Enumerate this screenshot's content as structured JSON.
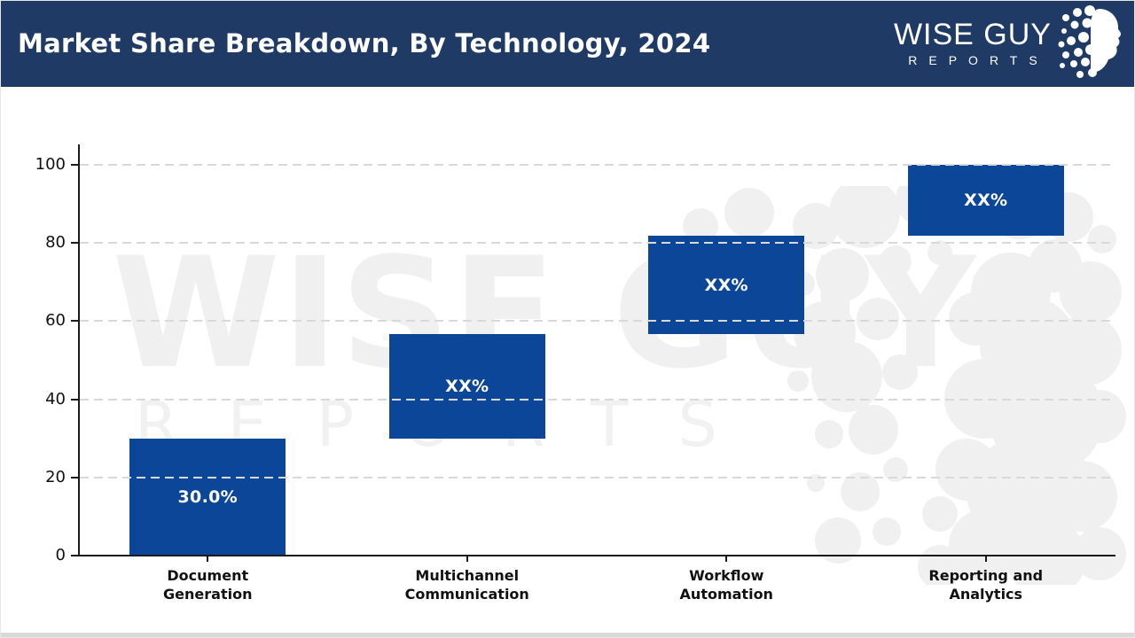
{
  "header": {
    "title": "Market Share Breakdown, By Technology, 2024",
    "logo": {
      "line1": "WISE GUY",
      "line2": "REPORTS"
    }
  },
  "watermark": {
    "line1": "WISE GUY",
    "line2": "REPORTS"
  },
  "chart_data": {
    "type": "bar",
    "subtype": "waterfall",
    "title": "Market Share Breakdown, By Technology, 2024",
    "xlabel": "",
    "ylabel": "",
    "ylim": [
      0,
      100
    ],
    "yticks": [
      0,
      20,
      40,
      60,
      80,
      100
    ],
    "grid": "horizontal-dashed",
    "legend_position": "none",
    "bar_color": "#0c4699",
    "value_label_color": "#ffffff",
    "categories": [
      "Document\nGeneration",
      "Multichannel\nCommunication",
      "Workflow\nAutomation",
      "Reporting and\nAnalytics"
    ],
    "bars": [
      {
        "category": "Document Generation",
        "start": 0,
        "end": 30,
        "label": "30.0%"
      },
      {
        "category": "Multichannel Communication",
        "start": 30,
        "end": 56.6,
        "label": "XX%"
      },
      {
        "category": "Workflow Automation",
        "start": 56.6,
        "end": 81.9,
        "label": "XX%"
      },
      {
        "category": "Reporting and Analytics",
        "start": 81.9,
        "end": 100,
        "label": "XX%"
      }
    ]
  },
  "colors": {
    "header_bg": "#203a66",
    "bar": "#0c4699",
    "grid": "#d9d9d9",
    "axis": "#1a1a1a",
    "watermark": "#f0f0f0",
    "bottom_strip": "#d9d9d9"
  }
}
